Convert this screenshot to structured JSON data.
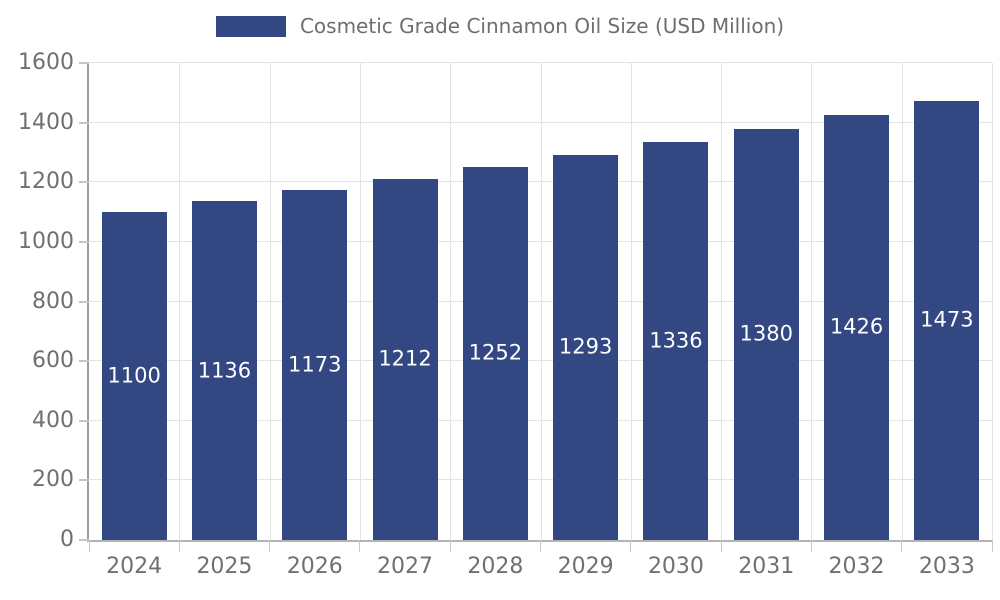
{
  "chart_data": {
    "type": "bar",
    "title": "Cosmetic Grade Cinnamon Oil Size (USD Million)",
    "categories": [
      "2024",
      "2025",
      "2026",
      "2027",
      "2028",
      "2029",
      "2030",
      "2031",
      "2032",
      "2033"
    ],
    "values": [
      1100,
      1136,
      1173,
      1212,
      1252,
      1293,
      1336,
      1380,
      1426,
      1473
    ],
    "xlabel": "",
    "ylabel": "",
    "ylim": [
      0,
      1600
    ],
    "ytick_step": 200,
    "grid": true,
    "legend_position": "top-center",
    "bar_value_labels": "inside-center"
  },
  "legend": {
    "swatch_color": "#334883",
    "label": "Cosmetic Grade Cinnamon Oil Size (USD Million)"
  },
  "colors": {
    "bar": "#334883",
    "grid": "#e3e3e3",
    "axis_y": "#9e9e9e",
    "axis_x": "#b3b3b3",
    "tick": "#c6c6c6",
    "text": "#707070",
    "bar_label": "#ffffff",
    "legend_text": "#6e6e6e",
    "bg": "#ffffff"
  }
}
